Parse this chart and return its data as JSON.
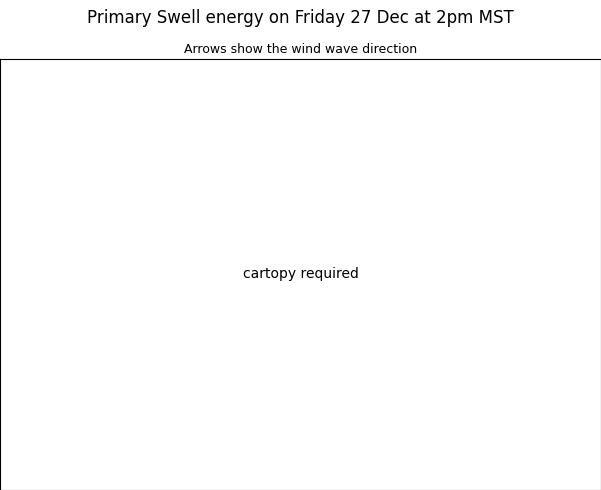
{
  "title": "Primary Swell energy on Friday 27 Dec at 2pm MST",
  "subtitle": "Arrows show the wind wave direction",
  "title_fontsize": 12,
  "subtitle_fontsize": 9,
  "fig_width": 6.01,
  "fig_height": 4.9,
  "dpi": 100,
  "background_color": "#ffffff",
  "ocean_energy_cmap": [
    [
      0.0,
      "#00008b"
    ],
    [
      0.08,
      "#0000ff"
    ],
    [
      0.18,
      "#ff0000"
    ],
    [
      0.45,
      "#ff4500"
    ],
    [
      0.7,
      "#ff8c00"
    ],
    [
      0.88,
      "#ffa500"
    ],
    [
      1.0,
      "#ffd700"
    ]
  ],
  "arrow_color": "#00e5ff",
  "arrow_edge_color": "#005500",
  "lon_min": -132,
  "lon_max": -80,
  "lat_min": 22,
  "lat_max": 53
}
